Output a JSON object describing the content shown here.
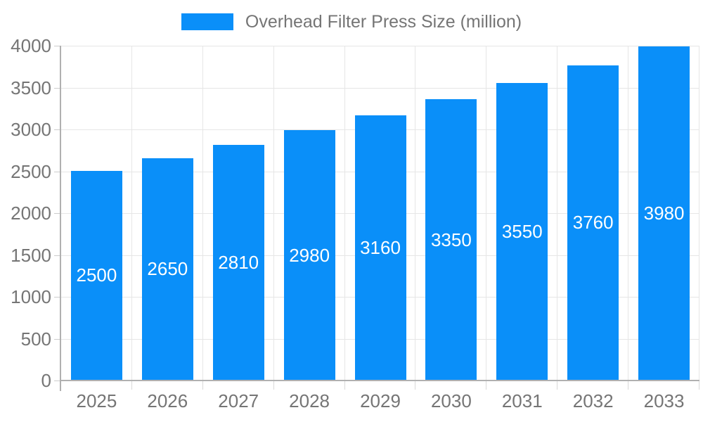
{
  "legend": {
    "label": "Overhead Filter Press Size (million)",
    "swatch_color": "#0a8ff9"
  },
  "chart_data": {
    "type": "bar",
    "title": "Overhead Filter Press Size (million)",
    "series_name": "Overhead Filter Press Size (million)",
    "categories": [
      "2025",
      "2026",
      "2027",
      "2028",
      "2029",
      "2030",
      "2031",
      "2032",
      "2033"
    ],
    "values": [
      2500,
      2650,
      2810,
      2980,
      3160,
      3350,
      3550,
      3760,
      3980
    ],
    "value_labels": [
      "2500",
      "2650",
      "2810",
      "2980",
      "3160",
      "3350",
      "3550",
      "3760",
      "3980"
    ],
    "xlabel": "",
    "ylabel": "",
    "ylim": [
      0,
      4000
    ],
    "yticks": [
      0,
      500,
      1000,
      1500,
      2000,
      2500,
      3000,
      3500,
      4000
    ],
    "grid": true,
    "legend_position": "top",
    "colors": {
      "bar": "#0a8ff9",
      "value_label": "#ffffff",
      "axis_text": "#757575",
      "gridline": "#e6e6e6",
      "axis_line": "#b0b0b0"
    }
  }
}
